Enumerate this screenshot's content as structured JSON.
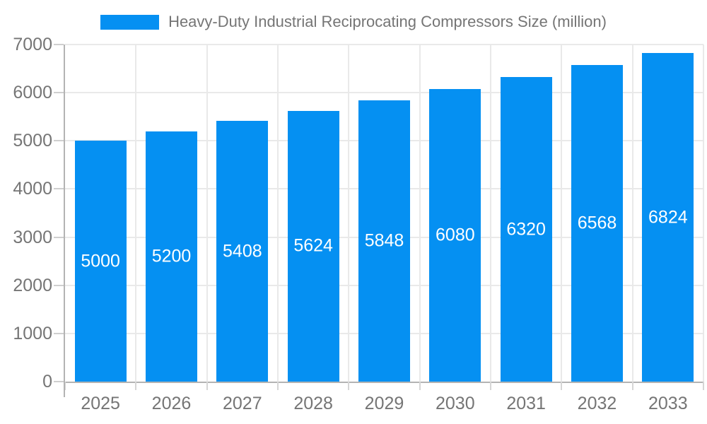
{
  "chart_data": {
    "type": "bar",
    "title": "Heavy-Duty Industrial Reciprocating Compressors Size (million)",
    "categories": [
      "2025",
      "2026",
      "2027",
      "2028",
      "2029",
      "2030",
      "2031",
      "2032",
      "2033"
    ],
    "values": [
      5000,
      5200,
      5408,
      5624,
      5848,
      6080,
      6320,
      6568,
      6824
    ],
    "series_name": "Heavy-Duty Industrial Reciprocating Compressors Size (million)",
    "xlabel": "",
    "ylabel": "",
    "ylim": [
      0,
      7000
    ],
    "yticks": [
      0,
      1000,
      2000,
      3000,
      4000,
      5000,
      6000,
      7000
    ],
    "grid": true,
    "legend_position": "top",
    "data_labels": "inside-center"
  },
  "colors": {
    "bar": "#0590f2",
    "bar_label_text": "#ffffff",
    "axis_text": "#757575",
    "gridline": "#e9e9e9",
    "axis_line": "#b3b3b3",
    "background": "#ffffff"
  }
}
